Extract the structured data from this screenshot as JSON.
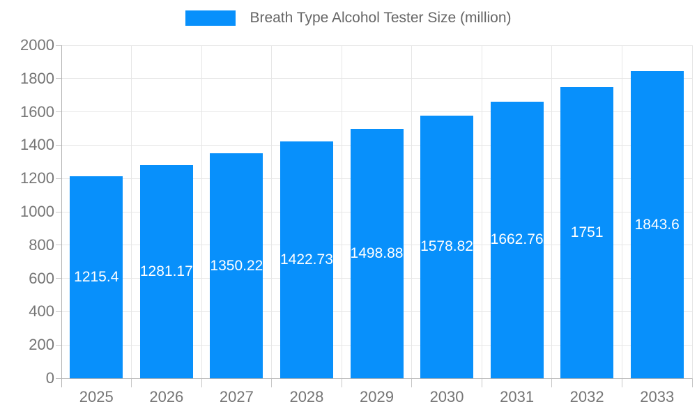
{
  "chart_data": {
    "type": "bar",
    "title": "Breath Type Alcohol Tester Size (million)",
    "legend_entries": [
      "Breath Type Alcohol Tester Size (million)"
    ],
    "legend_position": "top",
    "categories": [
      "2025",
      "2026",
      "2027",
      "2028",
      "2029",
      "2030",
      "2031",
      "2032",
      "2033"
    ],
    "values": [
      1215.4,
      1281.17,
      1350.22,
      1422.73,
      1498.88,
      1578.82,
      1662.76,
      1751,
      1843.6
    ],
    "bar_labels": [
      "1215.4",
      "1281.17",
      "1350.22",
      "1422.73",
      "1498.88",
      "1578.82",
      "1662.76",
      "1751",
      "1843.6"
    ],
    "xlabel": "",
    "ylabel": "",
    "ylim": [
      0,
      2000
    ],
    "ytick_step": 200,
    "ytick_labels": [
      "0",
      "200",
      "400",
      "600",
      "800",
      "1000",
      "1200",
      "1400",
      "1600",
      "1800",
      "2000"
    ],
    "grid": true,
    "colors": {
      "bar": "#0890fb",
      "grid": "#e6e6e6",
      "axis": "#b3b3b3",
      "tick": "#c6c6c6",
      "tick_label": "#757575",
      "legend_text": "#666666",
      "bar_label": "#ffffff",
      "background": "#ffffff"
    }
  }
}
